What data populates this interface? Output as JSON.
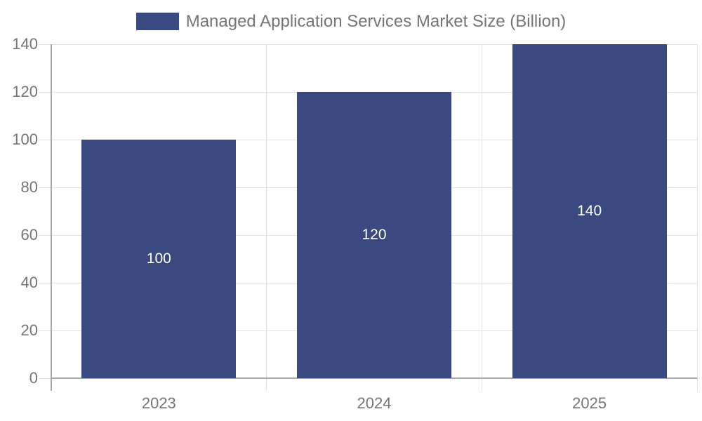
{
  "chart_data": {
    "type": "bar",
    "title": "Managed Application Services Market Size (Billion)",
    "categories": [
      "2023",
      "2024",
      "2025"
    ],
    "values": [
      100,
      120,
      140
    ],
    "yticks": [
      0,
      20,
      40,
      60,
      80,
      100,
      120,
      140
    ],
    "ylim": [
      0,
      140
    ],
    "xlabel": "",
    "ylabel": "",
    "grid": true,
    "legend_position": "top-center",
    "colors": {
      "bar": "#3A4980",
      "bar_label": "#FFFFFF",
      "axis_line": "#A6A6A6",
      "gridline": "#E3E3E3",
      "tick_text": "#757575",
      "legend_text": "#757575",
      "background": "#FFFFFF"
    }
  }
}
